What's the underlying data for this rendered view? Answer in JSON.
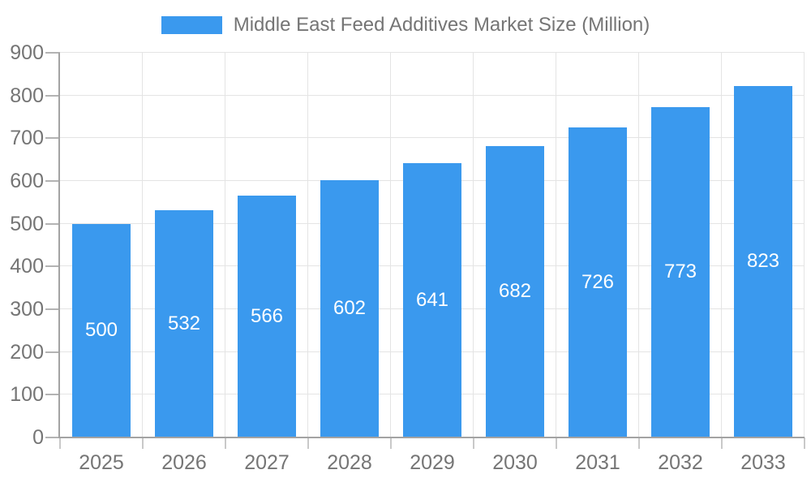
{
  "chart_data": {
    "type": "bar",
    "title": "Middle East Feed Additives Market Size (Million)",
    "categories": [
      "2025",
      "2026",
      "2027",
      "2028",
      "2029",
      "2030",
      "2031",
      "2032",
      "2033"
    ],
    "values": [
      500,
      532,
      566,
      602,
      641,
      682,
      726,
      773,
      823
    ],
    "value_labels": [
      "500",
      "532",
      "566",
      "602",
      "641",
      "682",
      "726",
      "773",
      "823"
    ],
    "xlabel": "",
    "ylabel": "",
    "ylim": [
      0,
      900
    ],
    "yticks": [
      0,
      100,
      200,
      300,
      400,
      500,
      600,
      700,
      800,
      900
    ],
    "grid": true,
    "legend_position": "top-center",
    "colors": {
      "bar": "#3a99ee",
      "value_label": "#ffffff",
      "axis_label": "#757575",
      "gridline": "#e4e4e4",
      "axis_line": "#a3a3a3"
    }
  }
}
